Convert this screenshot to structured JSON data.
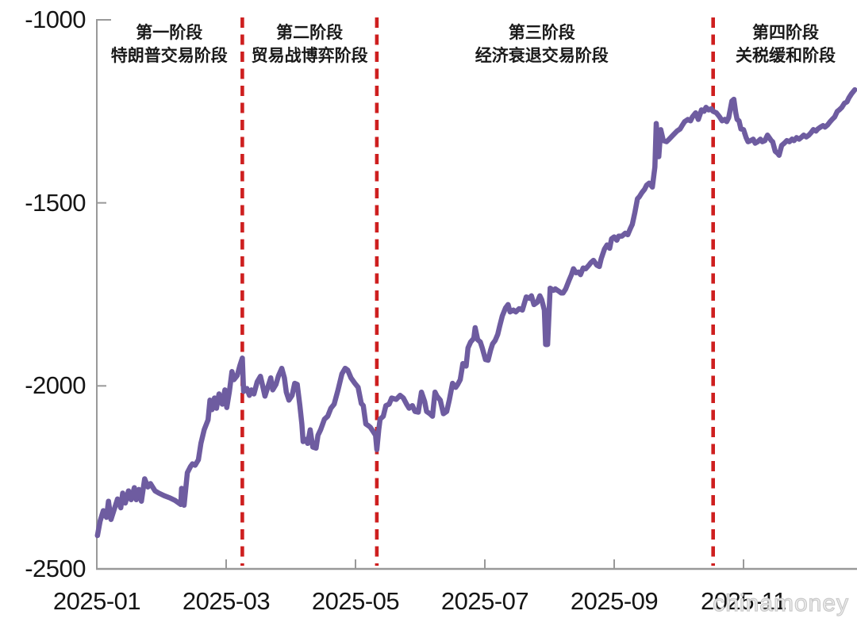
{
  "watermark": "chinamoney",
  "chart_data": {
    "type": "line",
    "title": "",
    "xlabel": "",
    "ylabel": "",
    "grid": false,
    "legend": "none",
    "x_axis": {
      "unit": "months since 2025-01",
      "tick_months": [
        0,
        2,
        4,
        6,
        8,
        10
      ],
      "tick_labels": [
        "2025-01",
        "2025-03",
        "2025-05",
        "2025-07",
        "2025-09",
        "2025-11"
      ],
      "range_months": [
        0,
        11.76
      ]
    },
    "y_axis": {
      "tick_values": [
        -1000,
        -1500,
        -2000,
        -2500
      ],
      "tick_labels": [
        "-1000",
        "-1500",
        "-2000",
        "-2500"
      ],
      "range": [
        -2500,
        -1000
      ]
    },
    "dividers": {
      "style": "dashed",
      "color": "#CE1F1F",
      "positions_months": [
        2.25,
        4.33,
        9.53
      ]
    },
    "phases": [
      {
        "line1": "第一阶段",
        "line2": "特朗普交易阶段",
        "center_month": 1.12
      },
      {
        "line1": "第二阶段",
        "line2": "贸易战博弈阶段",
        "center_month": 3.29
      },
      {
        "line1": "第三阶段",
        "line2": "经济衰退交易阶段",
        "center_month": 6.88
      },
      {
        "line1": "第四阶段",
        "line2": "关税缓和阶段",
        "center_month": 10.65
      }
    ],
    "series": [
      {
        "color": "#6E5CA0",
        "points": [
          [
            0.01,
            -2409
          ],
          [
            0.05,
            -2370
          ],
          [
            0.1,
            -2341
          ],
          [
            0.15,
            -2359
          ],
          [
            0.18,
            -2315
          ],
          [
            0.22,
            -2365
          ],
          [
            0.27,
            -2337
          ],
          [
            0.32,
            -2309
          ],
          [
            0.37,
            -2333
          ],
          [
            0.4,
            -2293
          ],
          [
            0.44,
            -2320
          ],
          [
            0.49,
            -2287
          ],
          [
            0.53,
            -2311
          ],
          [
            0.58,
            -2278
          ],
          [
            0.61,
            -2311
          ],
          [
            0.65,
            -2283
          ],
          [
            0.69,
            -2315
          ],
          [
            0.74,
            -2254
          ],
          [
            0.79,
            -2276
          ],
          [
            0.83,
            -2267
          ],
          [
            0.9,
            -2287
          ],
          [
            0.96,
            -2293
          ],
          [
            1.04,
            -2300
          ],
          [
            1.13,
            -2306
          ],
          [
            1.21,
            -2313
          ],
          [
            1.3,
            -2324
          ],
          [
            1.31,
            -2280
          ],
          [
            1.35,
            -2326
          ],
          [
            1.4,
            -2237
          ],
          [
            1.45,
            -2220
          ],
          [
            1.48,
            -2213
          ],
          [
            1.52,
            -2217
          ],
          [
            1.57,
            -2202
          ],
          [
            1.61,
            -2157
          ],
          [
            1.66,
            -2120
          ],
          [
            1.72,
            -2093
          ],
          [
            1.75,
            -2039
          ],
          [
            1.78,
            -2065
          ],
          [
            1.82,
            -2033
          ],
          [
            1.85,
            -2061
          ],
          [
            1.89,
            -2022
          ],
          [
            1.94,
            -2050
          ],
          [
            1.98,
            -2011
          ],
          [
            2.01,
            -2059
          ],
          [
            2.05,
            -2015
          ],
          [
            2.09,
            -1961
          ],
          [
            2.12,
            -1983
          ],
          [
            2.17,
            -1972
          ],
          [
            2.21,
            -1946
          ],
          [
            2.25,
            -1924
          ],
          [
            2.27,
            -2015
          ],
          [
            2.32,
            -2007
          ],
          [
            2.36,
            -2026
          ],
          [
            2.39,
            -2011
          ],
          [
            2.43,
            -2022
          ],
          [
            2.48,
            -1989
          ],
          [
            2.53,
            -1974
          ],
          [
            2.56,
            -1996
          ],
          [
            2.6,
            -2028
          ],
          [
            2.65,
            -2000
          ],
          [
            2.69,
            -1978
          ],
          [
            2.72,
            -2011
          ],
          [
            2.77,
            -1996
          ],
          [
            2.81,
            -1972
          ],
          [
            2.86,
            -1952
          ],
          [
            2.9,
            -1978
          ],
          [
            2.93,
            -2017
          ],
          [
            2.97,
            -2039
          ],
          [
            3.02,
            -2026
          ],
          [
            3.06,
            -1993
          ],
          [
            3.1,
            -1996
          ],
          [
            3.14,
            -2054
          ],
          [
            3.17,
            -2104
          ],
          [
            3.19,
            -2152
          ],
          [
            3.23,
            -2146
          ],
          [
            3.26,
            -2157
          ],
          [
            3.3,
            -2120
          ],
          [
            3.34,
            -2167
          ],
          [
            3.39,
            -2170
          ],
          [
            3.42,
            -2135
          ],
          [
            3.46,
            -2120
          ],
          [
            3.52,
            -2091
          ],
          [
            3.57,
            -2083
          ],
          [
            3.62,
            -2061
          ],
          [
            3.67,
            -2050
          ],
          [
            3.73,
            -2011
          ],
          [
            3.79,
            -1967
          ],
          [
            3.84,
            -1952
          ],
          [
            3.88,
            -1957
          ],
          [
            3.93,
            -1978
          ],
          [
            3.99,
            -1993
          ],
          [
            4.04,
            -2004
          ],
          [
            4.09,
            -2048
          ],
          [
            4.12,
            -2054
          ],
          [
            4.16,
            -2104
          ],
          [
            4.2,
            -2109
          ],
          [
            4.23,
            -2113
          ],
          [
            4.27,
            -2124
          ],
          [
            4.31,
            -2135
          ],
          [
            4.33,
            -2174
          ],
          [
            4.36,
            -2120
          ],
          [
            4.38,
            -2091
          ],
          [
            4.43,
            -2083
          ],
          [
            4.47,
            -2054
          ],
          [
            4.52,
            -2050
          ],
          [
            4.56,
            -2033
          ],
          [
            4.63,
            -2037
          ],
          [
            4.69,
            -2026
          ],
          [
            4.74,
            -2033
          ],
          [
            4.79,
            -2050
          ],
          [
            4.83,
            -2061
          ],
          [
            4.88,
            -2054
          ],
          [
            4.92,
            -2070
          ],
          [
            4.97,
            -2072
          ],
          [
            5.02,
            -2017
          ],
          [
            5.07,
            -2043
          ],
          [
            5.1,
            -2070
          ],
          [
            5.15,
            -2076
          ],
          [
            5.19,
            -2083
          ],
          [
            5.23,
            -2017
          ],
          [
            5.26,
            -2028
          ],
          [
            5.31,
            -2039
          ],
          [
            5.36,
            -2076
          ],
          [
            5.41,
            -2070
          ],
          [
            5.45,
            -2039
          ],
          [
            5.5,
            -1993
          ],
          [
            5.55,
            -2004
          ],
          [
            5.58,
            -1996
          ],
          [
            5.62,
            -1983
          ],
          [
            5.66,
            -1939
          ],
          [
            5.71,
            -1946
          ],
          [
            5.74,
            -1896
          ],
          [
            5.78,
            -1880
          ],
          [
            5.83,
            -1870
          ],
          [
            5.85,
            -1841
          ],
          [
            5.89,
            -1874
          ],
          [
            5.93,
            -1880
          ],
          [
            5.96,
            -1896
          ],
          [
            6.01,
            -1928
          ],
          [
            6.05,
            -1930
          ],
          [
            6.09,
            -1902
          ],
          [
            6.12,
            -1885
          ],
          [
            6.16,
            -1876
          ],
          [
            6.2,
            -1859
          ],
          [
            6.23,
            -1837
          ],
          [
            6.27,
            -1809
          ],
          [
            6.32,
            -1787
          ],
          [
            6.36,
            -1778
          ],
          [
            6.39,
            -1798
          ],
          [
            6.44,
            -1793
          ],
          [
            6.48,
            -1798
          ],
          [
            6.53,
            -1789
          ],
          [
            6.58,
            -1793
          ],
          [
            6.64,
            -1757
          ],
          [
            6.69,
            -1761
          ],
          [
            6.72,
            -1754
          ],
          [
            6.76,
            -1778
          ],
          [
            6.81,
            -1772
          ],
          [
            6.85,
            -1754
          ],
          [
            6.88,
            -1765
          ],
          [
            6.92,
            -1793
          ],
          [
            6.94,
            -1887
          ],
          [
            6.97,
            -1887
          ],
          [
            7.01,
            -1733
          ],
          [
            7.06,
            -1739
          ],
          [
            7.09,
            -1735
          ],
          [
            7.14,
            -1741
          ],
          [
            7.18,
            -1746
          ],
          [
            7.21,
            -1746
          ],
          [
            7.25,
            -1735
          ],
          [
            7.3,
            -1713
          ],
          [
            7.34,
            -1696
          ],
          [
            7.37,
            -1680
          ],
          [
            7.41,
            -1691
          ],
          [
            7.45,
            -1689
          ],
          [
            7.48,
            -1696
          ],
          [
            7.52,
            -1678
          ],
          [
            7.56,
            -1680
          ],
          [
            7.61,
            -1670
          ],
          [
            7.64,
            -1663
          ],
          [
            7.68,
            -1657
          ],
          [
            7.73,
            -1670
          ],
          [
            7.77,
            -1674
          ],
          [
            7.8,
            -1652
          ],
          [
            7.85,
            -1626
          ],
          [
            7.89,
            -1615
          ],
          [
            7.93,
            -1624
          ],
          [
            7.96,
            -1598
          ],
          [
            8.0,
            -1593
          ],
          [
            8.04,
            -1602
          ],
          [
            8.07,
            -1591
          ],
          [
            8.12,
            -1591
          ],
          [
            8.17,
            -1583
          ],
          [
            8.21,
            -1587
          ],
          [
            8.25,
            -1570
          ],
          [
            8.28,
            -1559
          ],
          [
            8.32,
            -1526
          ],
          [
            8.36,
            -1489
          ],
          [
            8.39,
            -1483
          ],
          [
            8.43,
            -1472
          ],
          [
            8.47,
            -1463
          ],
          [
            8.5,
            -1452
          ],
          [
            8.54,
            -1446
          ],
          [
            8.56,
            -1450
          ],
          [
            8.59,
            -1457
          ],
          [
            8.63,
            -1402
          ],
          [
            8.65,
            -1283
          ],
          [
            8.69,
            -1374
          ],
          [
            8.72,
            -1300
          ],
          [
            8.76,
            -1330
          ],
          [
            8.81,
            -1333
          ],
          [
            8.85,
            -1326
          ],
          [
            8.91,
            -1315
          ],
          [
            8.97,
            -1304
          ],
          [
            9.02,
            -1298
          ],
          [
            9.05,
            -1289
          ],
          [
            9.09,
            -1278
          ],
          [
            9.14,
            -1272
          ],
          [
            9.18,
            -1276
          ],
          [
            9.21,
            -1265
          ],
          [
            9.26,
            -1254
          ],
          [
            9.3,
            -1272
          ],
          [
            9.33,
            -1257
          ],
          [
            9.35,
            -1246
          ],
          [
            9.39,
            -1250
          ],
          [
            9.42,
            -1239
          ],
          [
            9.46,
            -1246
          ],
          [
            9.5,
            -1243
          ],
          [
            9.53,
            -1250
          ],
          [
            9.58,
            -1254
          ],
          [
            9.63,
            -1265
          ],
          [
            9.67,
            -1276
          ],
          [
            9.71,
            -1272
          ],
          [
            9.74,
            -1278
          ],
          [
            9.77,
            -1267
          ],
          [
            9.82,
            -1222
          ],
          [
            9.85,
            -1217
          ],
          [
            9.88,
            -1254
          ],
          [
            9.9,
            -1272
          ],
          [
            9.93,
            -1276
          ],
          [
            9.96,
            -1298
          ],
          [
            10.0,
            -1300
          ],
          [
            10.04,
            -1322
          ],
          [
            10.07,
            -1333
          ],
          [
            10.11,
            -1330
          ],
          [
            10.15,
            -1326
          ],
          [
            10.18,
            -1337
          ],
          [
            10.22,
            -1333
          ],
          [
            10.26,
            -1326
          ],
          [
            10.29,
            -1333
          ],
          [
            10.33,
            -1330
          ],
          [
            10.37,
            -1315
          ],
          [
            10.39,
            -1320
          ],
          [
            10.43,
            -1330
          ],
          [
            10.45,
            -1333
          ],
          [
            10.49,
            -1359
          ],
          [
            10.53,
            -1365
          ],
          [
            10.55,
            -1370
          ],
          [
            10.59,
            -1343
          ],
          [
            10.63,
            -1337
          ],
          [
            10.67,
            -1330
          ],
          [
            10.71,
            -1333
          ],
          [
            10.75,
            -1326
          ],
          [
            10.78,
            -1330
          ],
          [
            10.82,
            -1322
          ],
          [
            10.86,
            -1326
          ],
          [
            10.9,
            -1320
          ],
          [
            10.93,
            -1315
          ],
          [
            10.97,
            -1320
          ],
          [
            11.01,
            -1315
          ],
          [
            11.04,
            -1309
          ],
          [
            11.08,
            -1300
          ],
          [
            11.12,
            -1304
          ],
          [
            11.15,
            -1298
          ],
          [
            11.19,
            -1293
          ],
          [
            11.23,
            -1289
          ],
          [
            11.26,
            -1293
          ],
          [
            11.3,
            -1287
          ],
          [
            11.34,
            -1278
          ],
          [
            11.37,
            -1272
          ],
          [
            11.41,
            -1265
          ],
          [
            11.45,
            -1250
          ],
          [
            11.48,
            -1246
          ],
          [
            11.52,
            -1239
          ],
          [
            11.56,
            -1228
          ],
          [
            11.6,
            -1224
          ],
          [
            11.63,
            -1213
          ],
          [
            11.67,
            -1202
          ],
          [
            11.72,
            -1191
          ]
        ]
      }
    ]
  }
}
